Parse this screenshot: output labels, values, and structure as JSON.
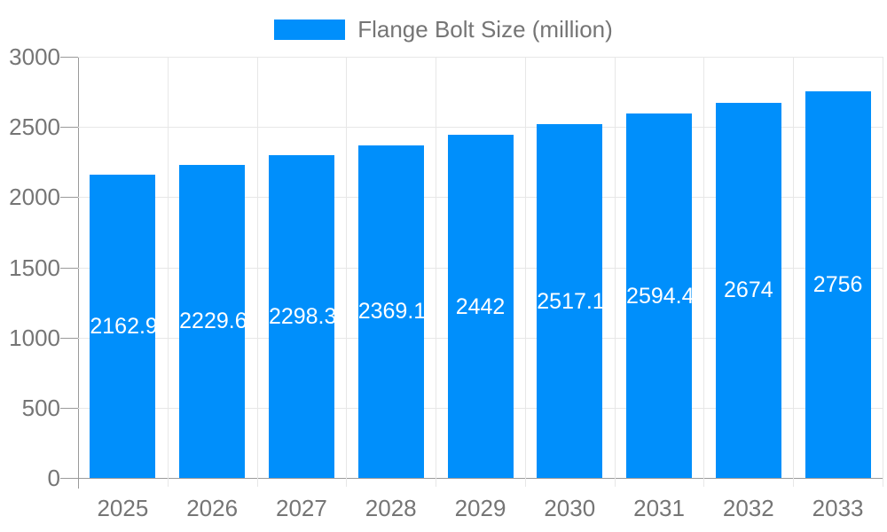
{
  "legend": {
    "label": "Flange Bolt Size (million)"
  },
  "colors": {
    "bar": "#008FFB",
    "axis_line": "#9a9a9a",
    "gridline": "#e7e7e7",
    "tick_text": "#757575",
    "value_text": "#ffffff"
  },
  "chart_data": {
    "type": "bar",
    "title": "Flange Bolt Size (million)",
    "categories": [
      "2025",
      "2026",
      "2027",
      "2028",
      "2029",
      "2030",
      "2031",
      "2032",
      "2033"
    ],
    "values": [
      2162.9,
      2229.6,
      2298.3,
      2369.1,
      2442,
      2517.1,
      2594.4,
      2674,
      2756
    ],
    "value_labels": [
      "2162.9",
      "2229.6",
      "2298.3",
      "2369.1",
      "2442",
      "2517.1",
      "2594.4",
      "2674",
      "2756"
    ],
    "xlabel": "",
    "ylabel": "",
    "ylim": [
      0,
      3000
    ],
    "yticks": [
      0,
      500,
      1000,
      1500,
      2000,
      2500,
      3000
    ],
    "grid": true,
    "legend_position": "top"
  }
}
